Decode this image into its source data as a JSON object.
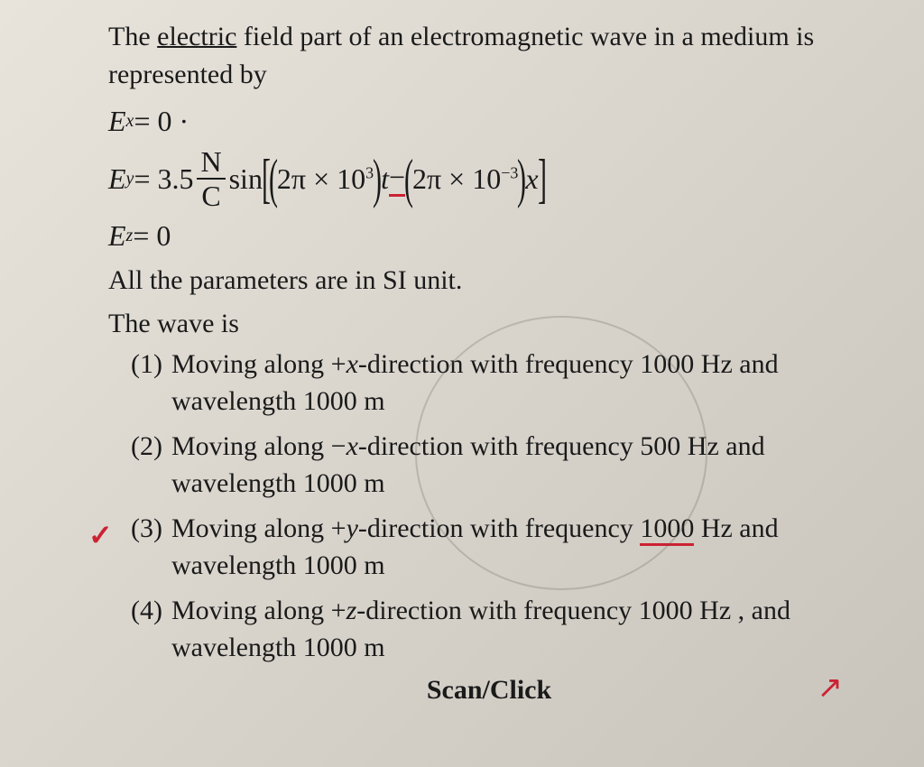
{
  "intro_part1": "The ",
  "intro_underlined": "electric",
  "intro_part2": " field part of an electromagnetic wave in a medium is represented by",
  "eq1_lhs": "E",
  "eq1_sub": "x",
  "eq1_rhs": " = 0 ·",
  "eq2_lhs": "E",
  "eq2_sub": "y",
  "eq2_eq": " = 3.5",
  "frac_num": "N",
  "frac_den": "C",
  "eq2_sin": "sin",
  "eq2_inner1_a": "2π × 10",
  "eq2_inner1_exp": "3",
  "eq2_t": "t",
  "eq2_minus": " − ",
  "eq2_inner2_a": "2π × 10",
  "eq2_inner2_exp": "−3",
  "eq2_x": "x",
  "eq3_lhs": "E",
  "eq3_sub": "z",
  "eq3_rhs": " = 0",
  "stmt1": "All the parameters are in SI unit.",
  "stmt2": "The wave is",
  "options": [
    {
      "num": "(1)",
      "pre": "Moving along +",
      "var": "x",
      "post": "-direction with frequency 1000 Hz and wavelength 1000 m",
      "mark": false,
      "hl_freq": true
    },
    {
      "num": "(2)",
      "pre": "Moving along −",
      "var": "x",
      "post": "-direction with frequency 500 Hz and wavelength 1000 m",
      "mark": false,
      "hl_freq": false
    },
    {
      "num": "(3)",
      "pre": "Moving along +",
      "var": "y",
      "post": "-direction with frequency ",
      "freq": "1000",
      "post2": " Hz and wavelength 1000 m",
      "mark": true,
      "hl_freq": false
    },
    {
      "num": "(4)",
      "pre": "Moving along +",
      "var": "z",
      "post": "-direction with frequency 1000 Hz , and wavelength 1000 m",
      "mark": false,
      "hl_freq": false
    }
  ],
  "scan": "Scan/Click"
}
